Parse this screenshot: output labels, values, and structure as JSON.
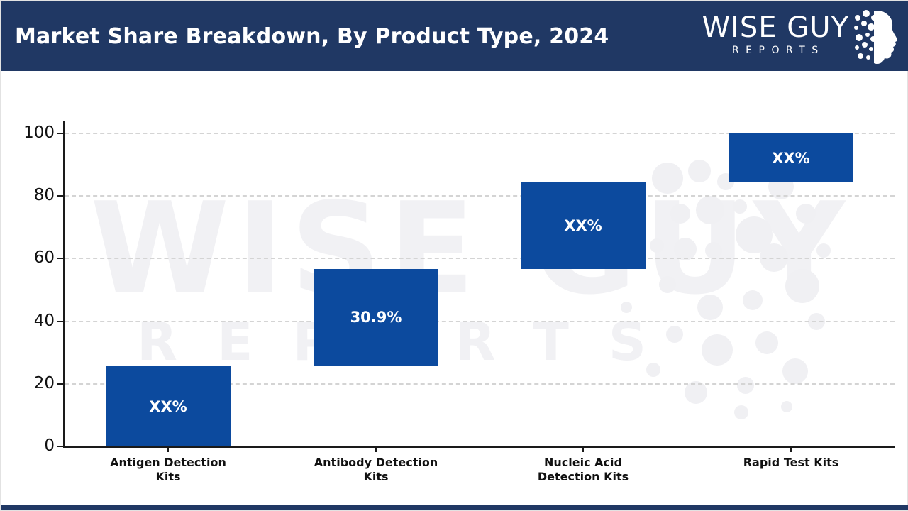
{
  "header": {
    "title": "Market Share Breakdown, By Product Type, 2024",
    "bg_color": "#203864",
    "logo": {
      "wordmark": "WISE GUY",
      "subtitle": "REPORTS"
    }
  },
  "watermark": {
    "line1": "WISE GUY",
    "line2": "REPORTS"
  },
  "chart_data": {
    "type": "bar",
    "subtype": "waterfall",
    "title": "Market Share Breakdown, By Product Type, 2024",
    "xlabel": "",
    "ylabel": "",
    "ylim": [
      0,
      105
    ],
    "y_ticks": [
      0,
      20,
      40,
      60,
      80,
      100
    ],
    "grid": "horizontal-dashed",
    "legend": "none",
    "bar_color": "#0c4a9e",
    "value_label_color": "#ffffff",
    "categories": [
      "Antigen Detection Kits",
      "Antibody Detection Kits",
      "Nucleic Acid Detection Kits",
      "Rapid Test Kits"
    ],
    "category_lines": [
      [
        "Antigen Detection",
        "Kits"
      ],
      [
        "Antibody Detection",
        "Kits"
      ],
      [
        "Nucleic Acid",
        "Detection Kits"
      ],
      [
        "Rapid Test Kits"
      ]
    ],
    "segments": [
      {
        "category": "Antigen Detection Kits",
        "start": 0,
        "end": 25.7,
        "display_label": "XX%"
      },
      {
        "category": "Antibody Detection Kits",
        "start": 25.7,
        "end": 56.6,
        "value": 30.9,
        "display_label": "30.9%"
      },
      {
        "category": "Nucleic Acid Detection Kits",
        "start": 56.6,
        "end": 84.3,
        "display_label": "XX%"
      },
      {
        "category": "Rapid Test Kits",
        "start": 84.3,
        "end": 100,
        "display_label": "XX%"
      }
    ]
  }
}
